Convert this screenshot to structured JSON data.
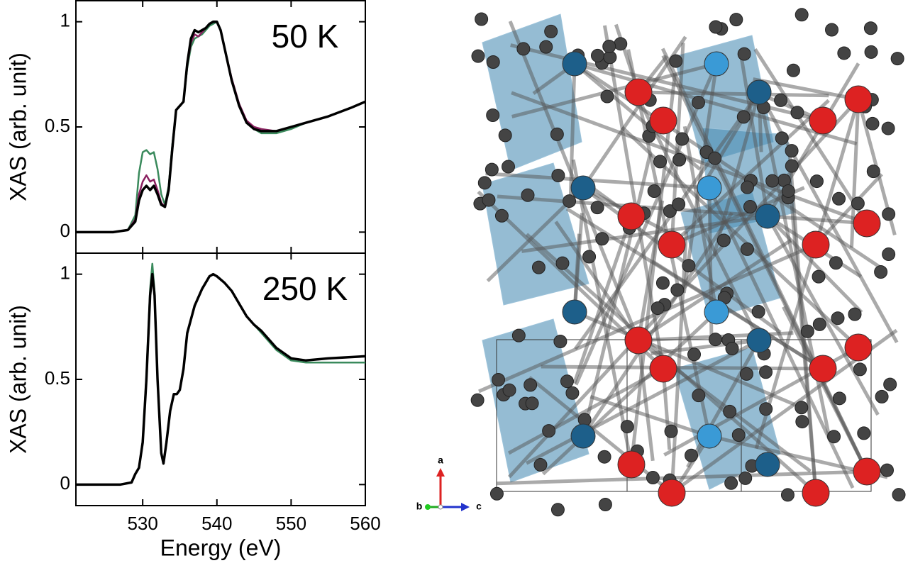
{
  "chart_data": [
    {
      "type": "line",
      "annotation": "50 K",
      "y_label": "XAS (arb. unit)",
      "x": [
        521,
        526,
        528,
        529,
        529.5,
        530,
        530.5,
        531,
        531.5,
        532,
        532.5,
        533,
        533.5,
        534,
        534.5,
        535,
        535.5,
        536,
        536.5,
        537,
        537.5,
        538,
        538.5,
        539,
        539.5,
        540,
        540.5,
        541,
        542,
        543,
        544,
        545,
        546,
        548,
        550,
        552,
        555,
        558,
        560
      ],
      "series": [
        {
          "color": "#3a8a5c",
          "values": [
            0,
            0,
            0.01,
            0.08,
            0.28,
            0.38,
            0.39,
            0.37,
            0.38,
            0.3,
            0.18,
            0.13,
            0.22,
            0.42,
            0.58,
            0.6,
            0.62,
            0.78,
            0.88,
            0.92,
            0.93,
            0.94,
            0.96,
            0.98,
            0.99,
            1.0,
            0.96,
            0.88,
            0.72,
            0.6,
            0.52,
            0.49,
            0.47,
            0.47,
            0.49,
            0.52,
            0.55,
            0.59,
            0.62
          ]
        },
        {
          "color": "#8a2060",
          "values": [
            0,
            0,
            0.01,
            0.06,
            0.18,
            0.24,
            0.27,
            0.24,
            0.25,
            0.2,
            0.14,
            0.12,
            0.21,
            0.41,
            0.58,
            0.6,
            0.62,
            0.79,
            0.9,
            0.94,
            0.93,
            0.95,
            0.97,
            0.99,
            1.0,
            1.0,
            0.96,
            0.88,
            0.73,
            0.61,
            0.53,
            0.5,
            0.49,
            0.48,
            0.5,
            0.52,
            0.55,
            0.59,
            0.62
          ]
        },
        {
          "color": "#000000",
          "values": [
            0,
            0,
            0.01,
            0.05,
            0.15,
            0.2,
            0.22,
            0.2,
            0.22,
            0.18,
            0.13,
            0.12,
            0.2,
            0.4,
            0.58,
            0.6,
            0.62,
            0.8,
            0.92,
            0.96,
            0.95,
            0.96,
            0.97,
            0.99,
            1.0,
            1.0,
            0.96,
            0.88,
            0.72,
            0.6,
            0.52,
            0.49,
            0.48,
            0.48,
            0.5,
            0.52,
            0.55,
            0.59,
            0.62
          ]
        }
      ],
      "xlim": [
        521,
        560
      ],
      "ylim": [
        -0.1,
        1.1
      ],
      "yticks": [
        0,
        0.5,
        1
      ]
    },
    {
      "type": "line",
      "annotation": "250 K",
      "y_label": "XAS (arb. unit)",
      "x_label": "Energy (eV)",
      "x": [
        521,
        527,
        528.5,
        529,
        529.5,
        530,
        530.5,
        531,
        531.3,
        531.6,
        532,
        532.5,
        532.8,
        533.2,
        533.7,
        534.2,
        534.6,
        535,
        535.5,
        536,
        537,
        538,
        539,
        539.5,
        540,
        541,
        542,
        543,
        544,
        545,
        546,
        547,
        548,
        550,
        552,
        555,
        560
      ],
      "series": [
        {
          "color": "#3a8a5c",
          "values": [
            0,
            0,
            0.01,
            0.05,
            0.08,
            0.21,
            0.52,
            0.93,
            1.05,
            0.92,
            0.5,
            0.15,
            0.1,
            0.2,
            0.35,
            0.43,
            0.43,
            0.45,
            0.55,
            0.72,
            0.85,
            0.93,
            0.99,
            1.0,
            0.99,
            0.96,
            0.92,
            0.86,
            0.8,
            0.76,
            0.72,
            0.68,
            0.64,
            0.59,
            0.58,
            0.58,
            0.58
          ]
        },
        {
          "color": "#000000",
          "values": [
            0,
            0,
            0.01,
            0.05,
            0.08,
            0.2,
            0.5,
            0.9,
            1.0,
            0.9,
            0.5,
            0.15,
            0.1,
            0.2,
            0.35,
            0.43,
            0.43,
            0.45,
            0.55,
            0.72,
            0.85,
            0.93,
            0.99,
            1.0,
            0.99,
            0.96,
            0.92,
            0.86,
            0.8,
            0.76,
            0.73,
            0.69,
            0.65,
            0.6,
            0.59,
            0.6,
            0.61
          ]
        }
      ],
      "xlim": [
        521,
        560
      ],
      "ylim": [
        -0.1,
        1.1
      ],
      "xticks": [
        530,
        540,
        550,
        560
      ],
      "yticks": [
        0,
        0.5,
        1
      ]
    }
  ],
  "crystal_axes": {
    "a": "a",
    "b": "b",
    "c": "c"
  }
}
